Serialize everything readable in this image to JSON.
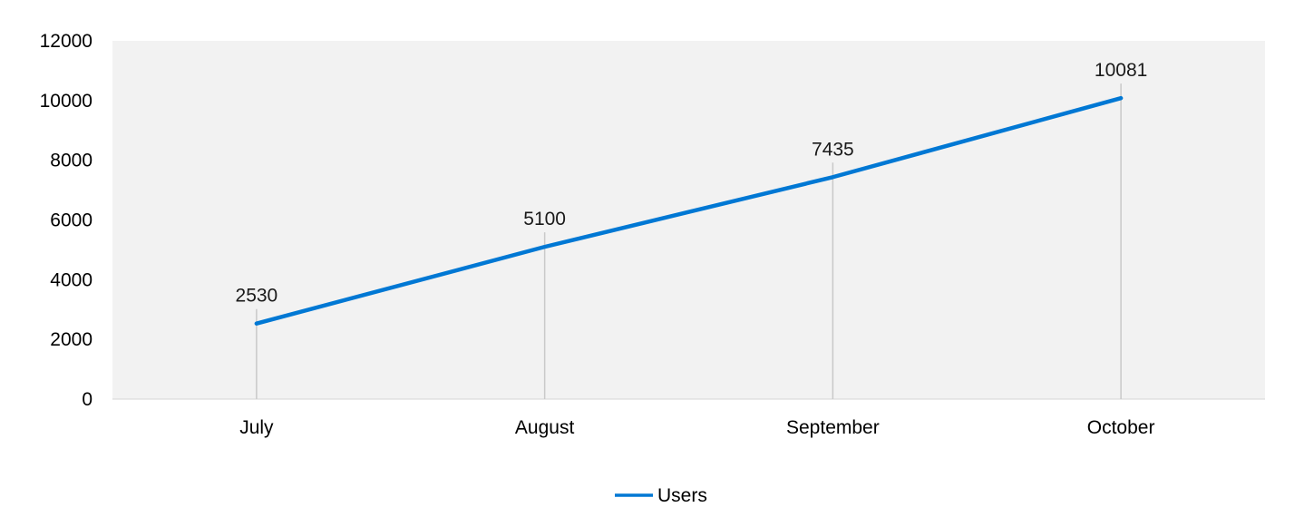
{
  "chart_data": {
    "type": "line",
    "title": "",
    "categories": [
      "July",
      "August",
      "September",
      "October"
    ],
    "series": [
      {
        "name": "Users",
        "values": [
          2530,
          5100,
          7435,
          10081
        ]
      }
    ],
    "data_labels": [
      "2530",
      "5100",
      "7435",
      "10081"
    ],
    "ylim": [
      0,
      12000
    ],
    "ytick_step": 2000,
    "ytick_labels": [
      "0",
      "2000",
      "4000",
      "6000",
      "8000",
      "10000",
      "12000"
    ],
    "xlabel": "",
    "ylabel": "",
    "grid": false,
    "legend": {
      "position": "bottom",
      "entries": [
        "Users"
      ]
    }
  },
  "colors": {
    "line": "#0078d4",
    "plot_background": "#f2f2f2",
    "drop_line": "#c9c9c9",
    "axis_line": "#d6d6d6",
    "tick_label": "#000000",
    "data_label": "#1a1a1a",
    "legend_text": "#000000"
  },
  "legend": {
    "users_label": "Users"
  }
}
